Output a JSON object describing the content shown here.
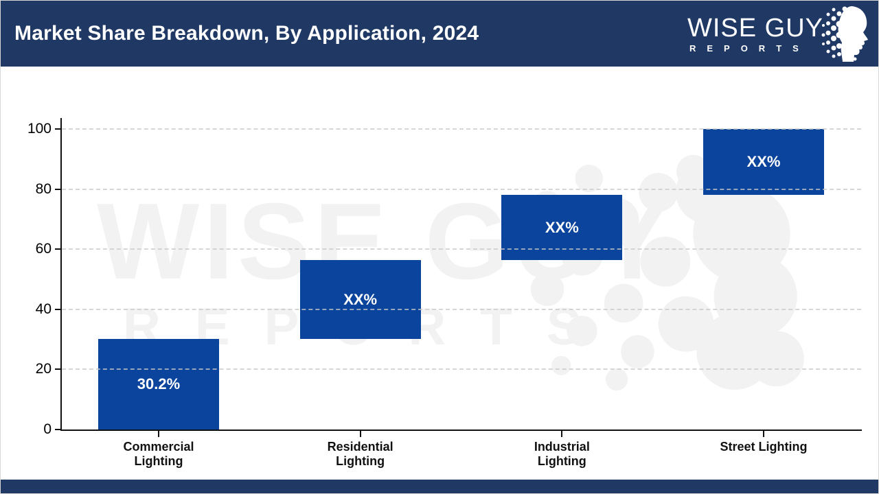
{
  "header": {
    "title": "Market Share Breakdown, By Application, 2024",
    "logo": {
      "line1": "WISE GUY",
      "line2": "REPORTS"
    }
  },
  "watermark": {
    "line1": "WISE GUY",
    "line2": "REPORTS"
  },
  "chart_data": {
    "type": "bar",
    "subtype": "waterfall",
    "title": "Market Share Breakdown, By Application, 2024",
    "categories": [
      "Commercial\nLighting",
      "Residential\nLighting",
      "Industrial\nLighting",
      "Street Lighting"
    ],
    "bars": [
      {
        "category": "Commercial Lighting",
        "start": 0,
        "end": 30.2,
        "label": "30.2%"
      },
      {
        "category": "Residential Lighting",
        "start": 30.2,
        "end": 56.3,
        "label": "XX%"
      },
      {
        "category": "Industrial Lighting",
        "start": 56.3,
        "end": 78.0,
        "label": "XX%"
      },
      {
        "category": "Street Lighting",
        "start": 78.0,
        "end": 100,
        "label": "XX%"
      }
    ],
    "yticks": [
      0,
      20,
      40,
      60,
      80,
      100
    ],
    "ylim": [
      0,
      100
    ],
    "xlabel": "",
    "ylabel": "",
    "grid": "horizontal-dashed",
    "legend": "none"
  },
  "colors": {
    "header_bg": "#1f3864",
    "footer_bg": "#1f3864",
    "bar": "#0b449c",
    "grid": "#c9c9c9",
    "axis": "#111111",
    "watermark": "#f2f2f2",
    "bar_label": "#ffffff"
  }
}
